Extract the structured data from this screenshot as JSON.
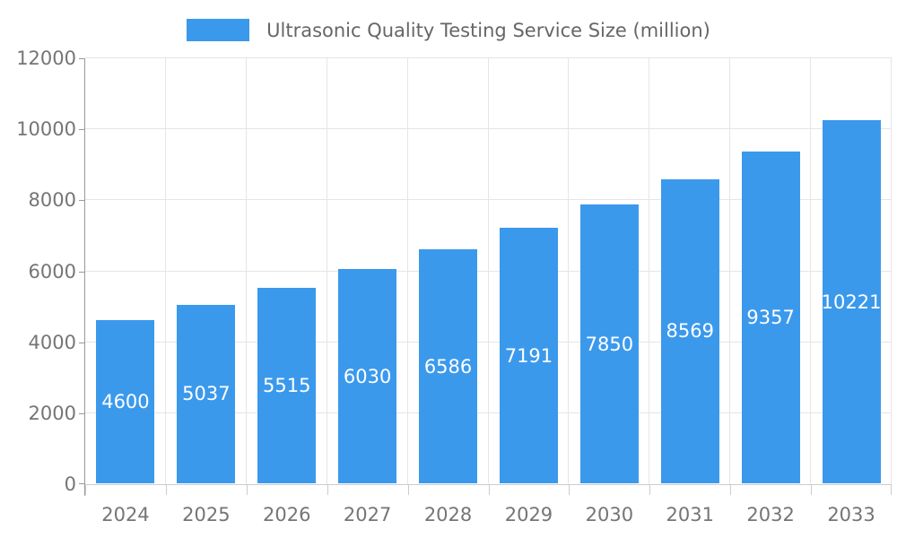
{
  "legend": {
    "label": "Ultrasonic Quality Testing Service Size (million)"
  },
  "colors": {
    "bar": "#3B99EC",
    "grid_line": "#E5E5E5",
    "y_axis_line": "#999999",
    "y_tick": "#999999",
    "x_axis_line": "#CCCCCC",
    "x_boundary_tick": "#CCCCCC",
    "axis_label_text": "#757575",
    "legend_text": "#666666",
    "bar_value_text": "#FFFFFF",
    "background": "#FFFFFF"
  },
  "chart_data": {
    "type": "bar",
    "title": "Ultrasonic Quality Testing Service Size (million)",
    "series_name": "Ultrasonic Quality Testing Service Size (million)",
    "categories": [
      "2024",
      "2025",
      "2026",
      "2027",
      "2028",
      "2029",
      "2030",
      "2031",
      "2032",
      "2033"
    ],
    "values": [
      4600,
      5037,
      5515,
      6030,
      6586,
      7191,
      7850,
      8569,
      9357,
      10221
    ],
    "xlabel": "",
    "ylabel": "",
    "ylim": [
      0,
      12000
    ],
    "y_ticks": [
      0,
      2000,
      4000,
      6000,
      8000,
      10000,
      12000
    ],
    "grid": true,
    "legend_position": "top-center",
    "value_labels": "inside-center"
  }
}
